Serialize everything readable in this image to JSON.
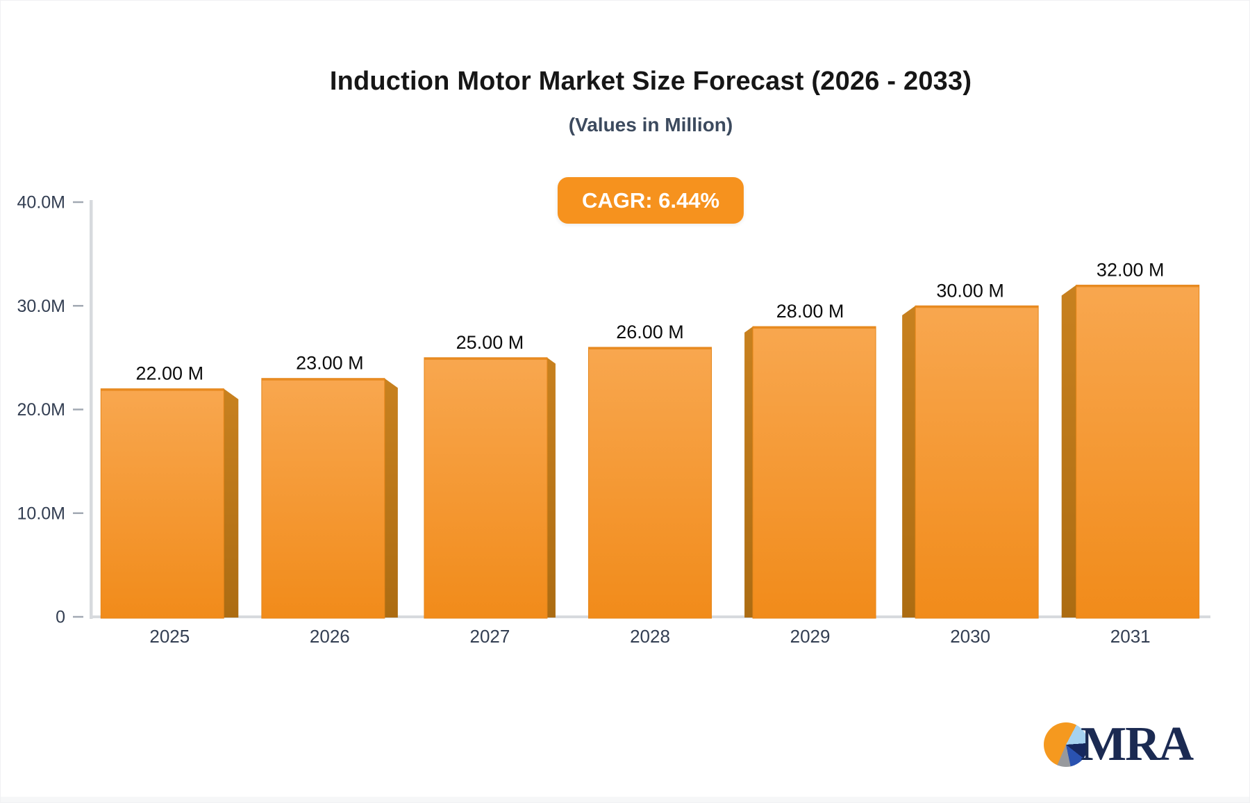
{
  "header": {
    "title": "Induction Motor Market Size Forecast (2026 - 2033)",
    "subtitle": "(Values in Million)",
    "cagr_badge": "CAGR: 6.44%"
  },
  "logo": {
    "text": "MRA",
    "icon": "pie-chart-icon"
  },
  "colors": {
    "accent_orange": "#f6921e",
    "bar_front_top": "#f8a74f",
    "bar_front_bottom": "#f18b1a",
    "bar_side_top": "#c8811f",
    "bar_side_bottom": "#ac6c12",
    "bar_edge": "#e5861a",
    "axis_line": "#d7dade",
    "tick": "#a2a9b3",
    "axis_label": "#333e52",
    "value_label": "#0c0c0c",
    "badge_text": "#ffffff",
    "logo_navy": "#1b2a52"
  },
  "chart_data": {
    "type": "bar",
    "style": "3d-perspective-bars",
    "title": "Induction Motor Market Size Forecast (2026 - 2033)",
    "subtitle": "(Values in Million)",
    "annotation": "CAGR: 6.44%",
    "unit": "Million",
    "categories": [
      "2025",
      "2026",
      "2027",
      "2028",
      "2029",
      "2030",
      "2031"
    ],
    "values": [
      22,
      23,
      25,
      26,
      28,
      30,
      32
    ],
    "value_labels": [
      "22.00 M",
      "23.00 M",
      "25.00 M",
      "26.00 M",
      "28.00 M",
      "30.00 M",
      "32.00 M"
    ],
    "xlabel": "",
    "ylabel": "",
    "ylim": [
      0,
      40
    ],
    "yticks": [
      {
        "value": 40,
        "label": "40.0M"
      },
      {
        "value": 30,
        "label": "30.0M"
      },
      {
        "value": 20,
        "label": "20.0M"
      },
      {
        "value": 10,
        "label": "10.0M"
      },
      {
        "value": 0,
        "label": "0"
      }
    ],
    "grid": false,
    "legend": "none"
  }
}
